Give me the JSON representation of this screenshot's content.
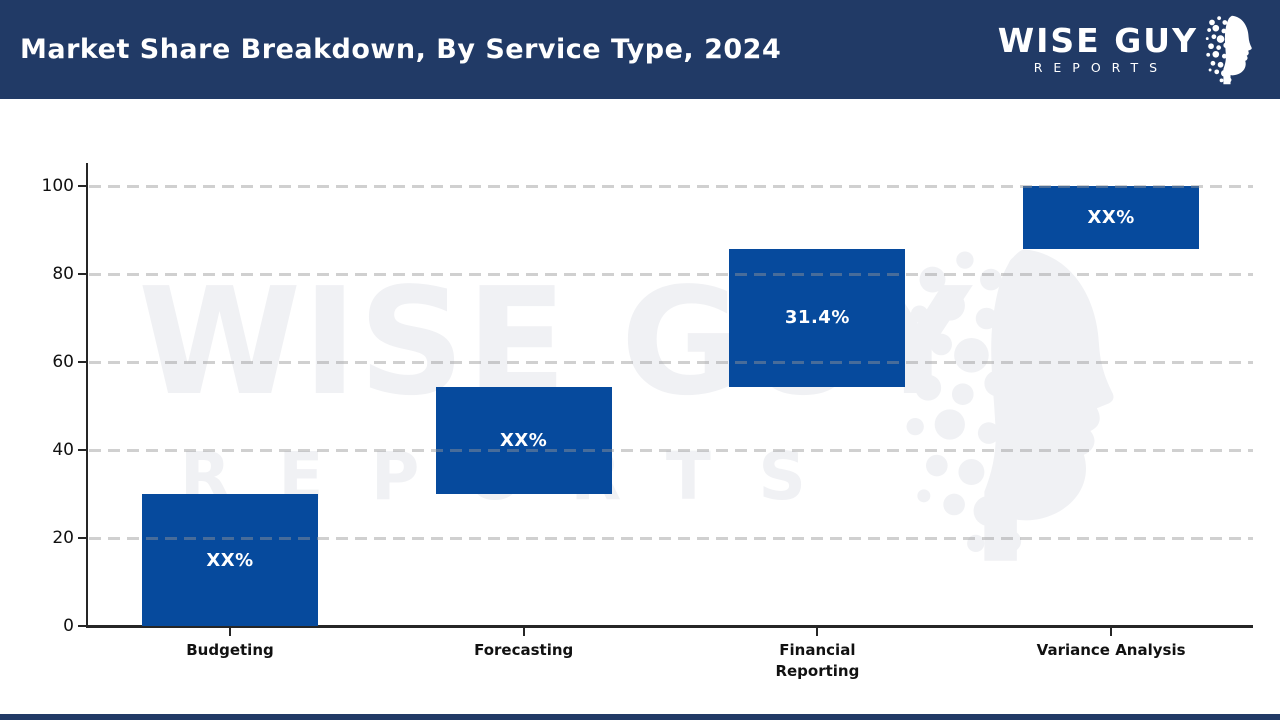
{
  "header": {
    "title": "Market Share Breakdown, By Service Type, 2024",
    "bg_color": "#213a66",
    "logo": {
      "line1": "WISE GUY",
      "line2": "REPORTS"
    }
  },
  "watermark": {
    "line1": "WISE GUY",
    "line2": "REPORTS"
  },
  "footer": {
    "bg_color": "#213a66"
  },
  "chart_data": {
    "type": "bar",
    "subtype": "waterfall",
    "title": "Market Share Breakdown, By Service Type, 2024",
    "xlabel": "",
    "ylabel": "",
    "categories": [
      "Budgeting",
      "Forecasting",
      "Financial\nReporting",
      "Variance Analysis"
    ],
    "segments": [
      {
        "category": "Budgeting",
        "start": 0,
        "end": 30,
        "label": "XX%"
      },
      {
        "category": "Forecasting",
        "start": 30,
        "end": 54.3,
        "label": "XX%"
      },
      {
        "category": "Financial Reporting",
        "start": 54.3,
        "end": 85.7,
        "label": "31.4%"
      },
      {
        "category": "Variance Analysis",
        "start": 85.7,
        "end": 100,
        "label": "XX%"
      }
    ],
    "yticks": [
      0,
      20,
      40,
      60,
      80,
      100
    ],
    "ylim": [
      0,
      100
    ],
    "bar_color": "#064a9d",
    "grid": true,
    "grid_style": "dashed",
    "legend": false
  }
}
